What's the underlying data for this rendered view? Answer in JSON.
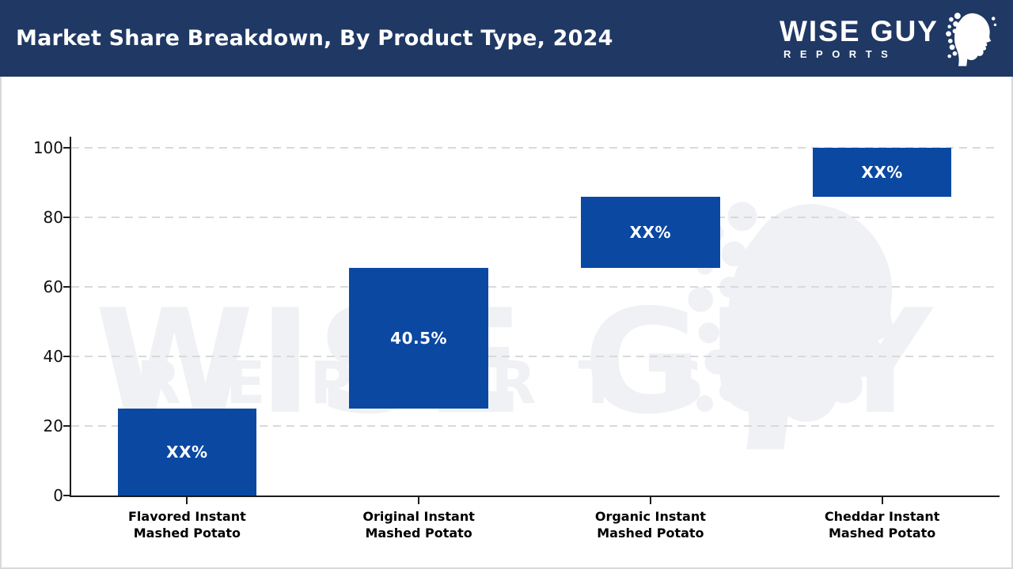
{
  "header": {
    "title": "Market Share Breakdown, By Product Type, 2024",
    "logo": {
      "name": "WISE GUY",
      "sub": "REPORTS"
    }
  },
  "watermark": {
    "name": "WISE GUY",
    "sub": "REPORTS"
  },
  "chart_data": {
    "type": "bar",
    "subtype": "floating-segment-waterfall",
    "title": "Market Share Breakdown, By Product Type, 2024",
    "categories": [
      "Flavored Instant\nMashed Potato",
      "Original Instant\nMashed Potato",
      "Organic Instant\nMashed Potato",
      "Cheddar Instant\nMashed Potato"
    ],
    "bars": [
      {
        "start": 0,
        "end": 25,
        "label": "XX%"
      },
      {
        "start": 25,
        "end": 65.5,
        "label": "40.5%"
      },
      {
        "start": 65.5,
        "end": 86,
        "label": "XX%"
      },
      {
        "start": 86,
        "end": 100,
        "label": "XX%"
      }
    ],
    "xlabel": "",
    "ylabel": "",
    "ylim": [
      0,
      100
    ],
    "yticks": [
      0,
      20,
      40,
      60,
      80,
      100
    ],
    "grid": "horizontal-dashed",
    "legend": "none",
    "colors": {
      "header_bg": "#1f3864",
      "bar": "#0a48a2",
      "bar_label": "#ffffff",
      "grid": "#d9d9d9",
      "axis": "#1c1c1c",
      "watermark": "#f0f1f4"
    }
  }
}
